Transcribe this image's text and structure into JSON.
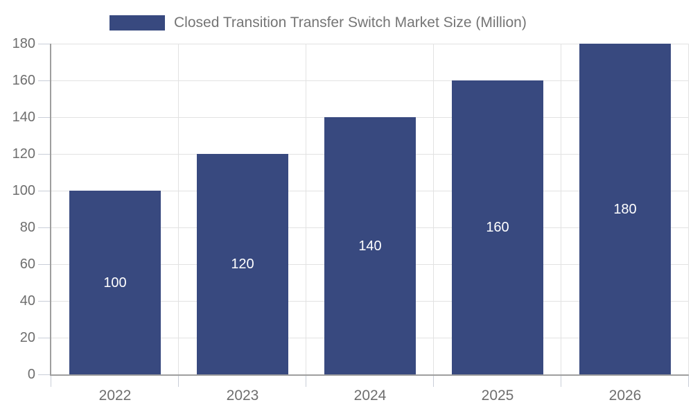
{
  "chart_data": {
    "type": "bar",
    "title": "Closed Transition Transfer Switch Market Size (Million)",
    "legend": {
      "position": "top",
      "entries": [
        "Closed Transition Transfer Switch Market Size (Million)"
      ]
    },
    "categories": [
      "2022",
      "2023",
      "2024",
      "2025",
      "2026"
    ],
    "values": [
      100,
      120,
      140,
      160,
      180
    ],
    "data_labels": [
      "100",
      "120",
      "140",
      "160",
      "180"
    ],
    "xlabel": "",
    "ylabel": "",
    "ylim": [
      0,
      180
    ],
    "yticks": [
      0,
      20,
      40,
      60,
      80,
      100,
      120,
      140,
      160,
      180
    ],
    "grid": true,
    "colors": {
      "bar": "#38497f",
      "bar_label_text": "#ffffff",
      "axis_line": "#9e9e9e",
      "gridline": "#e2e2e2",
      "tick_mark": "#c9ced8",
      "tick_label_text": "#6e6e6e",
      "legend_text": "#757575",
      "background": "#ffffff"
    }
  }
}
